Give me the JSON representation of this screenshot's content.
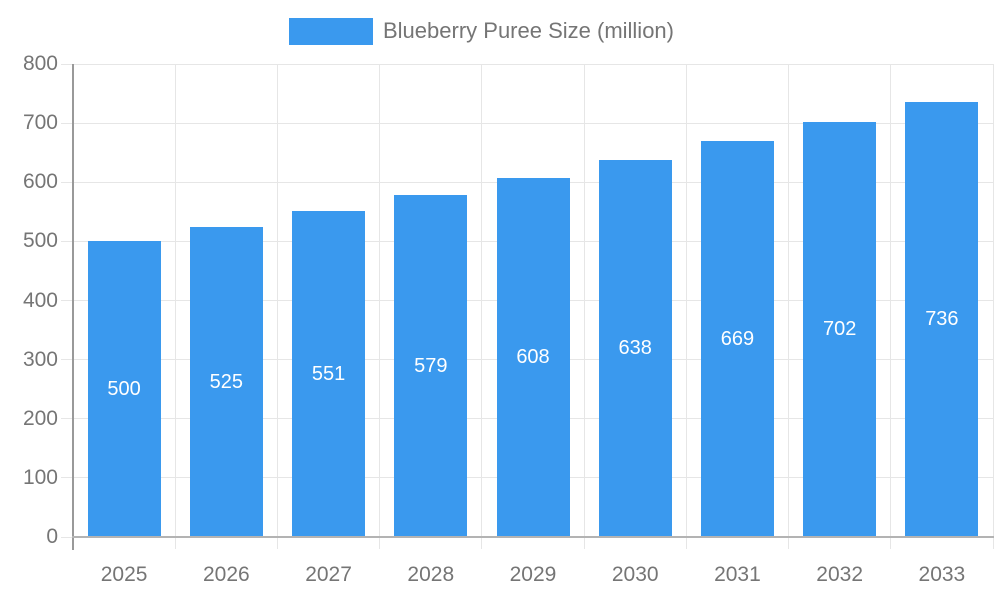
{
  "legend": {
    "label": "Blueberry Puree Size (million)"
  },
  "chart_data": {
    "type": "bar",
    "title": "",
    "xlabel": "",
    "ylabel": "",
    "categories": [
      "2025",
      "2026",
      "2027",
      "2028",
      "2029",
      "2030",
      "2031",
      "2032",
      "2033"
    ],
    "series": [
      {
        "name": "Blueberry Puree Size (million)",
        "values": [
          500,
          525,
          551,
          579,
          608,
          638,
          669,
          702,
          736
        ]
      }
    ],
    "ylim": [
      0,
      800
    ],
    "yticks": [
      0,
      100,
      200,
      300,
      400,
      500,
      600,
      700,
      800
    ],
    "grid": true,
    "legend_position": "top",
    "bar_labels_inside": true,
    "colors": {
      "bar": "#3a99ee",
      "bar_label": "#ffffff",
      "axis_text": "#757575",
      "gridline": "#e6e6e6",
      "axis_line": "#999999",
      "baseline": "#b3b3b3"
    }
  }
}
